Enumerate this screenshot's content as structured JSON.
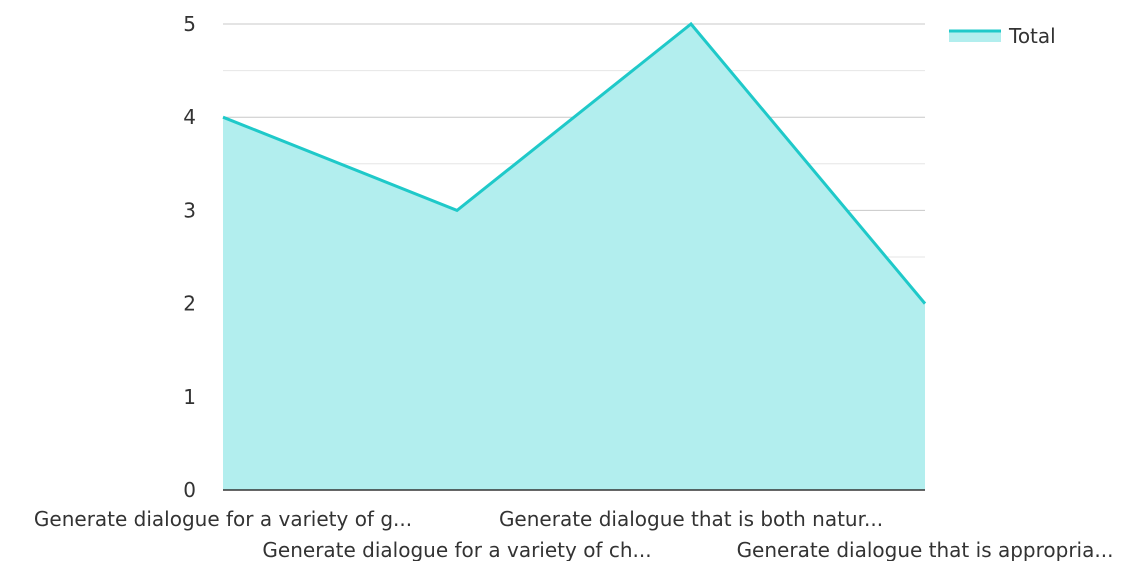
{
  "chart_data": {
    "type": "area",
    "categories": [
      "Generate dialogue for a variety of g...",
      "Generate dialogue for a variety of ch...",
      "Generate dialogue that is both natur...",
      "Generate dialogue that is appropria..."
    ],
    "series": [
      {
        "name": "Total",
        "values": [
          4,
          3,
          5,
          2
        ]
      }
    ],
    "ylim": [
      0,
      5
    ],
    "yticks": [
      0,
      1,
      2,
      3,
      4,
      5
    ],
    "grid": true,
    "legend_position": "top-right",
    "colors": {
      "line": "#1fc9c9",
      "fill": "#b2eeee",
      "grid_major": "#c8c8c8",
      "grid_minor": "#e6e6e6",
      "axis": "#333333"
    }
  }
}
